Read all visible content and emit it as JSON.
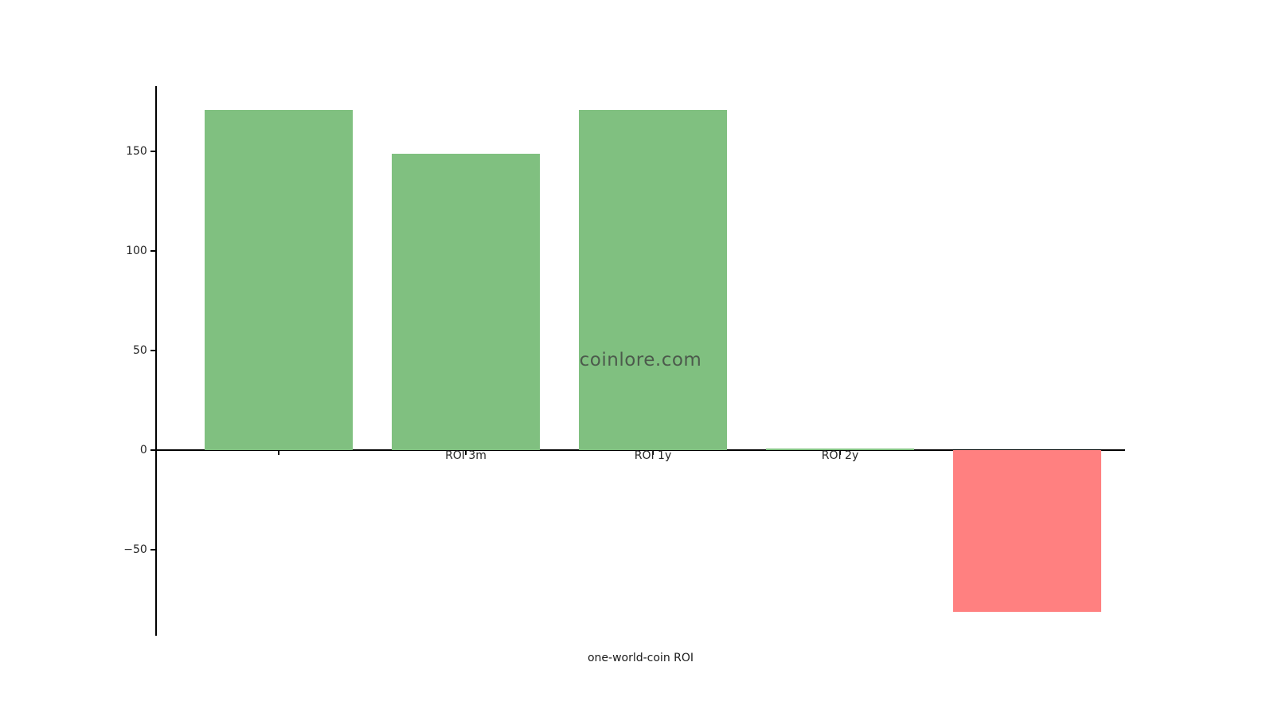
{
  "chart_data": {
    "type": "bar",
    "title": "one-world-coin ROI",
    "watermark": "coinlore.com",
    "categories": [
      "",
      "ROI 3m",
      "ROI 1y",
      "ROI 2y",
      ""
    ],
    "values": [
      171,
      149,
      171,
      1,
      -81
    ],
    "yticks": [
      150,
      100,
      50,
      0,
      -50
    ],
    "ylim": [
      -93.5,
      182.5
    ],
    "xlabel": "",
    "ylabel": "",
    "grid": false,
    "legend_position": "none",
    "colors": {
      "positive_bar": "#80c080",
      "negative_bar": "#ff8080",
      "axis": "#000000",
      "tick_text": "#262626",
      "title_text": "#1a1a1a",
      "watermark_text": "#3e3e3e",
      "background": "#ffffff"
    }
  }
}
